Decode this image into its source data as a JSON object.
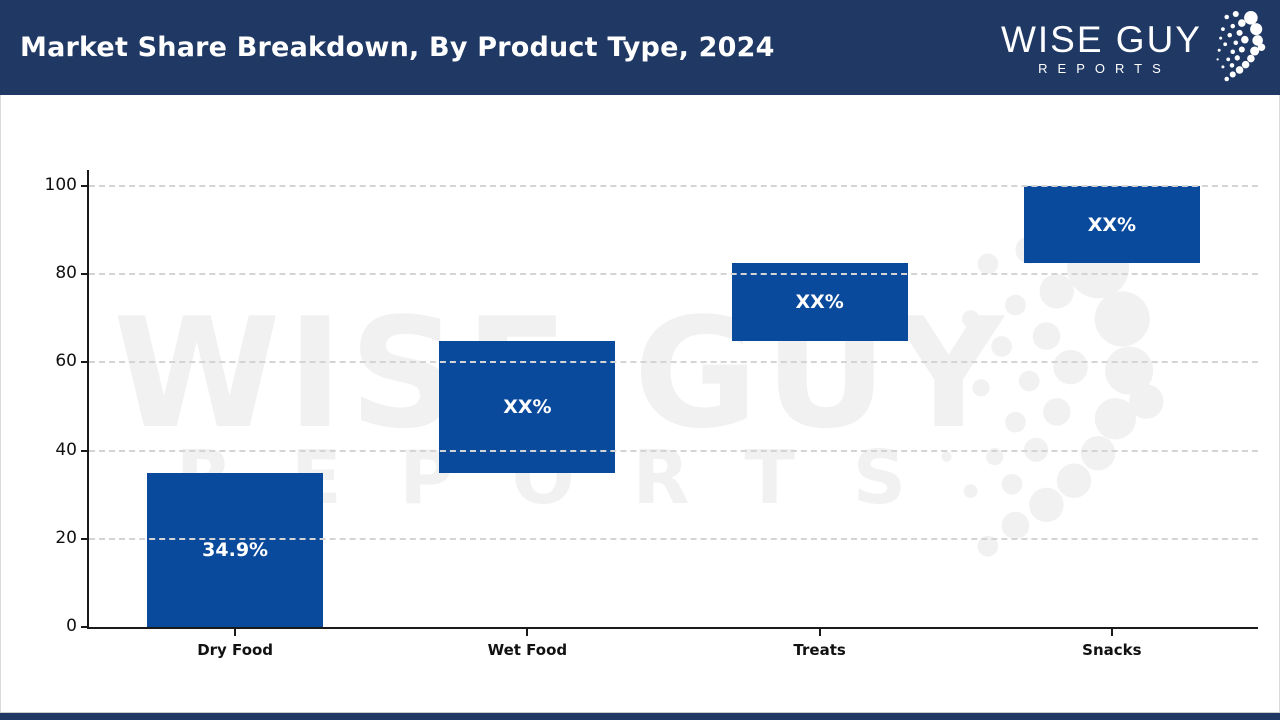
{
  "header": {
    "title": "Market Share Breakdown, By Product Type, 2024",
    "logo": {
      "line1": "WISE GUY",
      "line2": "REPORTS"
    }
  },
  "watermark": {
    "line1": "WISE GUY",
    "line2": "REPORTS"
  },
  "colors": {
    "header_bg": "#1f3864",
    "footer_bg": "#1f3864",
    "bar": "#0a4a9c",
    "grid": "#d4d4d4",
    "axis": "#1a1a1a",
    "bar_label": "#ffffff",
    "watermark": "#f1f1f1"
  },
  "chart_data": {
    "type": "bar",
    "subtype": "waterfall-floating",
    "title": "Market Share Breakdown, By Product Type, 2024",
    "categories": [
      "Dry Food",
      "Wet Food",
      "Treats",
      "Snacks"
    ],
    "bars": [
      {
        "category": "Dry Food",
        "start": 0,
        "end": 34.9,
        "value": 34.9,
        "label": "34.9%"
      },
      {
        "category": "Wet Food",
        "start": 34.9,
        "end": 64.9,
        "value": 30.0,
        "label": "XX%"
      },
      {
        "category": "Treats",
        "start": 64.9,
        "end": 82.5,
        "value": 17.6,
        "label": "XX%"
      },
      {
        "category": "Snacks",
        "start": 82.5,
        "end": 100.0,
        "value": 17.5,
        "label": "XX%"
      }
    ],
    "xlabel": "",
    "ylabel": "",
    "ylim": [
      0,
      100
    ],
    "yticks": [
      0,
      20,
      40,
      60,
      80,
      100
    ],
    "grid": "horizontal-dashed-over-bars",
    "legend": false,
    "bar_color": "#0a4a9c"
  }
}
